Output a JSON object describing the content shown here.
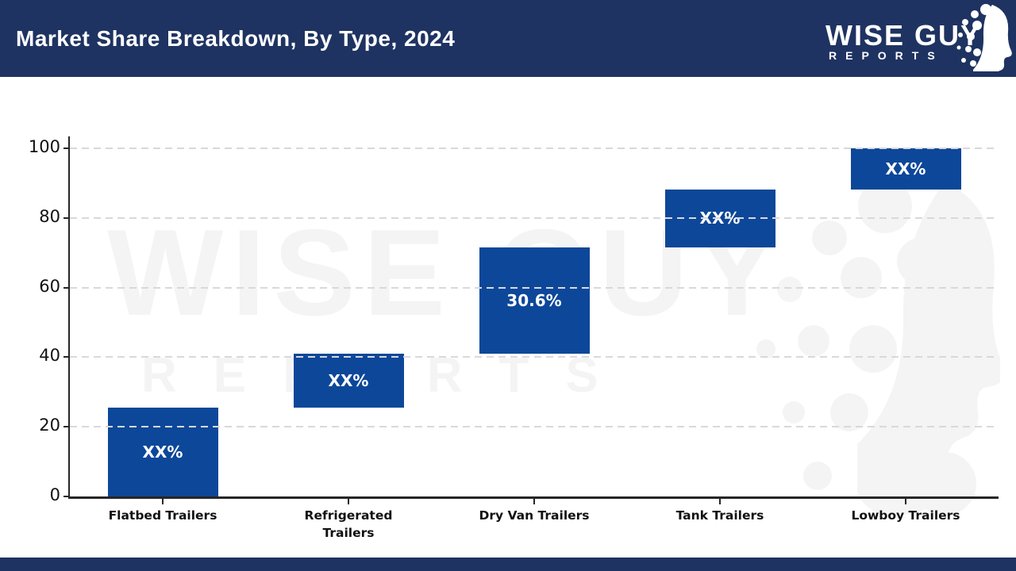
{
  "header": {
    "title": "Market Share Breakdown, By Type, 2024",
    "bg_color": "#1e3361",
    "logo": {
      "line1": "WISE GUY",
      "line2": "REPORTS"
    }
  },
  "watermark": {
    "line1": "WISE GUY",
    "line2": "REPORTS"
  },
  "chart_data": {
    "type": "bar",
    "subtype": "waterfall",
    "title": "Market Share Breakdown, By Type, 2024",
    "xlabel": "",
    "ylabel": "",
    "ylim": [
      0,
      100
    ],
    "yticks": [
      0,
      20,
      40,
      60,
      80,
      100
    ],
    "grid": "horizontal-dashed",
    "legend": "none",
    "bar_color": "#0d4799",
    "bar_label_color": "#ffffff",
    "categories": [
      "Flatbed Trailers",
      "Refrigerated Trailers",
      "Dry Van Trailers",
      "Tank Trailers",
      "Lowboy Trailers"
    ],
    "segments": [
      {
        "category": "Flatbed Trailers",
        "start": 0,
        "end": 25.5,
        "label": "XX%"
      },
      {
        "category": "Refrigerated Trailers",
        "start": 25.5,
        "end": 41.0,
        "label": "XX%"
      },
      {
        "category": "Dry Van Trailers",
        "start": 41.0,
        "end": 71.6,
        "label": "30.6%"
      },
      {
        "category": "Tank Trailers",
        "start": 71.6,
        "end": 88.2,
        "label": "XX%"
      },
      {
        "category": "Lowboy Trailers",
        "start": 88.2,
        "end": 100.0,
        "label": "XX%"
      }
    ]
  },
  "footer": {
    "bg_color": "#1e3361"
  }
}
